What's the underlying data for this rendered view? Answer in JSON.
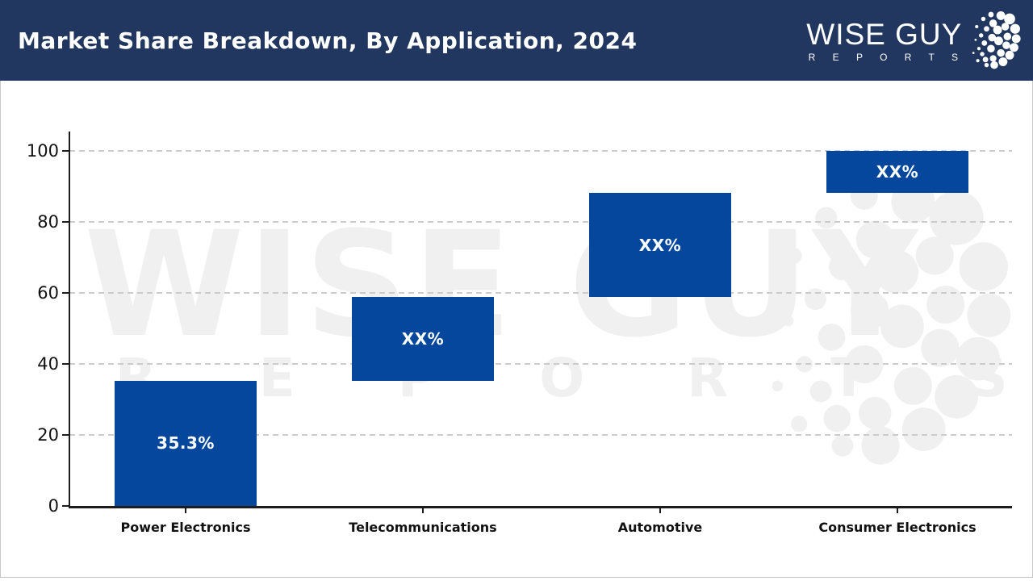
{
  "header": {
    "title": "Market Share Breakdown, By Application, 2024",
    "logo": {
      "line1": "WISE GUY",
      "line2": "R E P O R T S"
    }
  },
  "watermark": {
    "line1": "WISE GUY",
    "line2": "R E P O R T S"
  },
  "chart_data": {
    "type": "bar",
    "subtype": "waterfall",
    "title": "Market Share Breakdown, By Application, 2024",
    "categories": [
      "Power Electronics",
      "Telecommunications",
      "Automotive",
      "Consumer Electronics"
    ],
    "series": [
      {
        "category": "Power Electronics",
        "start": 0,
        "end": 35.3,
        "label": "35.3%"
      },
      {
        "category": "Telecommunications",
        "start": 35.3,
        "end": 58.8,
        "label": "XX%"
      },
      {
        "category": "Automotive",
        "start": 58.8,
        "end": 88.2,
        "label": "XX%"
      },
      {
        "category": "Consumer Electronics",
        "start": 88.2,
        "end": 100,
        "label": "XX%"
      }
    ],
    "yticks": [
      0,
      20,
      40,
      60,
      80,
      100
    ],
    "ylim": [
      0,
      105
    ],
    "xlabel": "",
    "ylabel": "",
    "grid": "horizontal-dashed",
    "legend": "none"
  },
  "colors": {
    "header_bg": "#21375f",
    "bar": "#04479c",
    "bar_label": "#ffffff",
    "grid": "#cccccc",
    "axis": "#1c1c1c",
    "watermark": "#f0f0f1"
  }
}
